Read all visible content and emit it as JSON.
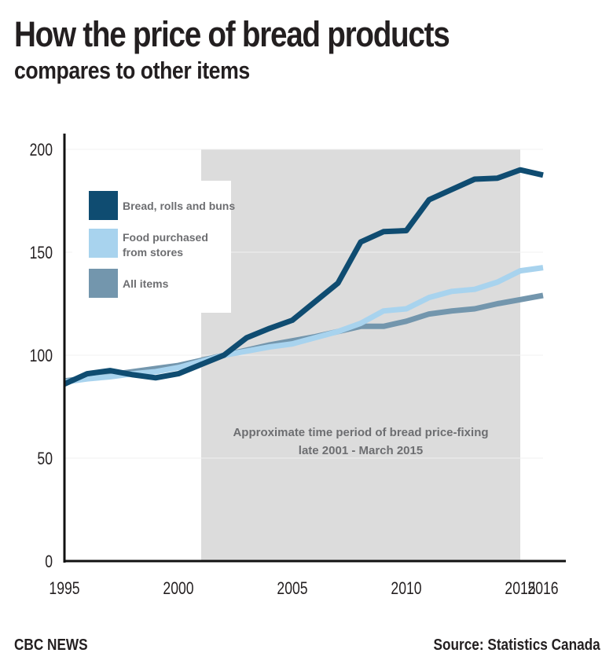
{
  "header": {
    "title": "How the price of bread products",
    "subtitle": "compares to other items"
  },
  "footer": {
    "brand": "CBC NEWS",
    "source": "Source: Statistics Canada"
  },
  "colors": {
    "bread": "#0f4c71",
    "food": "#a8d3ee",
    "all": "#7396ad",
    "shade": "#dcdcdc",
    "axis": "#111111",
    "text": "#231f20",
    "annotation": "#6d6e71"
  },
  "chart_data": {
    "type": "line",
    "title": "How the price of bread products compares to other items",
    "xlabel": "",
    "ylabel": "",
    "xlim": [
      1995,
      2017
    ],
    "ylim": [
      0,
      200
    ],
    "x_ticks": [
      1995,
      2000,
      2005,
      2010,
      2015,
      2016
    ],
    "y_ticks": [
      0,
      50,
      100,
      150,
      200
    ],
    "x": [
      1995,
      1996,
      1997,
      1998,
      1999,
      2000,
      2001,
      2002,
      2003,
      2004,
      2005,
      2006,
      2007,
      2008,
      2009,
      2010,
      2011,
      2012,
      2013,
      2014,
      2015,
      2016
    ],
    "series": [
      {
        "name": "Bread, rolls and buns",
        "color_key": "bread",
        "values": [
          86,
          91,
          92.5,
          90.5,
          89,
          91,
          95.5,
          100,
          108.5,
          113,
          117,
          126,
          135,
          155,
          160,
          160.5,
          175.5,
          180.5,
          185.5,
          186,
          190,
          187.5
        ]
      },
      {
        "name": "Food purchased from stores",
        "color_key": "food",
        "values": [
          87,
          88.5,
          89.5,
          91,
          92,
          94,
          97,
          100,
          102,
          104,
          105.5,
          108.5,
          111.5,
          115.5,
          121.5,
          122.5,
          128,
          131,
          132,
          135.5,
          141,
          142.5
        ]
      },
      {
        "name": "All items",
        "color_key": "all",
        "values": [
          87.5,
          89,
          90.5,
          92,
          93.5,
          95,
          97.5,
          100,
          102.5,
          105,
          107,
          109,
          111.5,
          114,
          114,
          116.5,
          120,
          121.5,
          122.5,
          125,
          127,
          129
        ]
      }
    ],
    "shaded_period": {
      "start": 2001,
      "end": 2015,
      "label_line1": "Approximate time period of bread price-fixing",
      "label_line2": "late 2001 - March 2015"
    },
    "legend_position": "top-left",
    "legend": [
      {
        "label": "Bread, rolls and buns",
        "color_key": "bread"
      },
      {
        "label": "Food purchased from stores",
        "label_line1": "Food purchased",
        "label_line2": "from stores",
        "color_key": "food"
      },
      {
        "label": "All items",
        "color_key": "all"
      }
    ]
  }
}
